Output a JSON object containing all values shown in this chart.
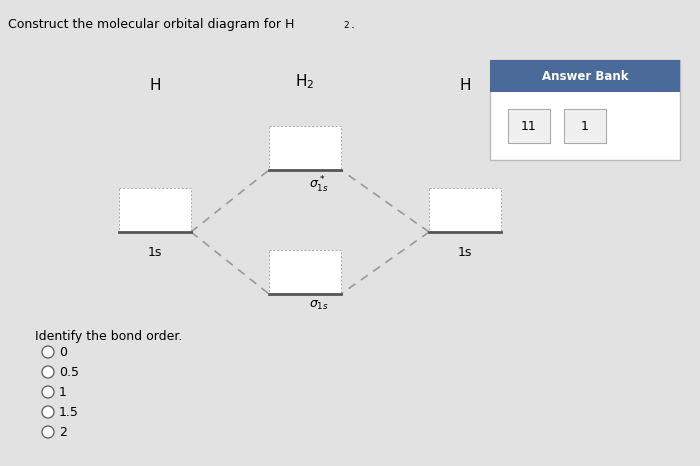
{
  "bg_color": "#e2e2e2",
  "white_color": "#ffffff",
  "h_left_label": "H",
  "h2_label": "H$_2$",
  "h_right_label": "H",
  "h_left_sublabel": "1s",
  "h_right_sublabel": "1s",
  "sigma_star_label": "$\\sigma^*_{1s}$",
  "sigma_label": "$\\sigma_{1s}$",
  "answer_bank_title": "Answer Bank",
  "answer_bank_bg": "#4a6a9a",
  "answer_bank_box_bg": "#f0f0f0",
  "answer_bank_items": [
    "11",
    "1"
  ],
  "radio_options": [
    "0",
    "0.5",
    "1",
    "1.5",
    "2"
  ],
  "identify_text": "Identify the bond order.",
  "title_main": "Construct the molecular orbital diagram for H",
  "title_sub": "2",
  "title_dot": "."
}
